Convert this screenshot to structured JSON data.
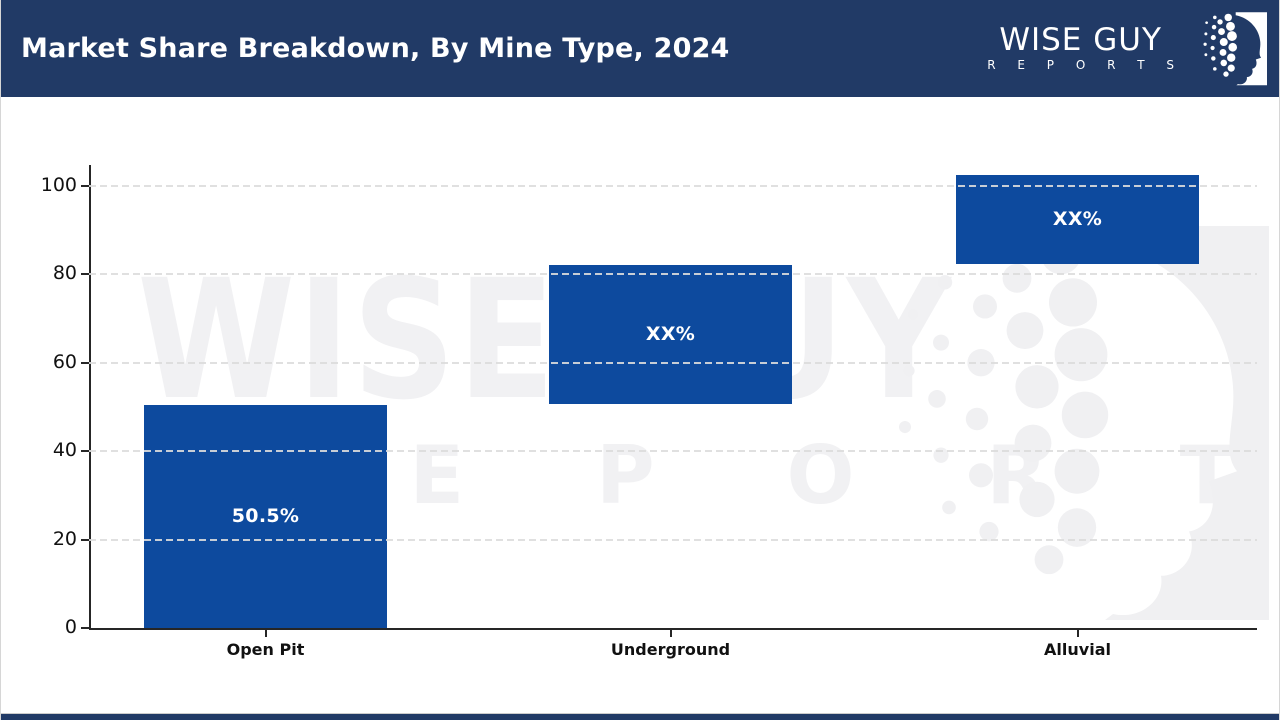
{
  "header": {
    "title": "Market Share Breakdown, By Mine Type, 2024",
    "bg_color": "#213a66",
    "logo": {
      "line1": "WISE GUY",
      "line2": "R E P O R T S"
    }
  },
  "watermark": {
    "line1": "WISE GUY",
    "line2": "R E P O R T S"
  },
  "chart_data": {
    "type": "bar",
    "subtype": "floating-waterfall",
    "title": "Market Share Breakdown, By Mine Type, 2024",
    "categories": [
      "Open Pit",
      "Underground",
      "Alluvial"
    ],
    "segments": [
      {
        "category": "Open Pit",
        "from": 0,
        "to": 50.5,
        "label": "50.5%"
      },
      {
        "category": "Underground",
        "from": 50.7,
        "to": 82.2,
        "label": "XX%"
      },
      {
        "category": "Alluvial",
        "from": 82.4,
        "to": 102.6,
        "label": "XX%"
      }
    ],
    "yticks": [
      0,
      20,
      40,
      60,
      80,
      100
    ],
    "ylim": [
      0,
      104.8
    ],
    "xlabel": "",
    "ylabel": "",
    "grid": true,
    "grid_style": "dashed",
    "legend": false,
    "bar_color": "#0d4a9e",
    "value_label_color": "#ffffff"
  },
  "footer": {
    "bar_color": "#213a66"
  }
}
